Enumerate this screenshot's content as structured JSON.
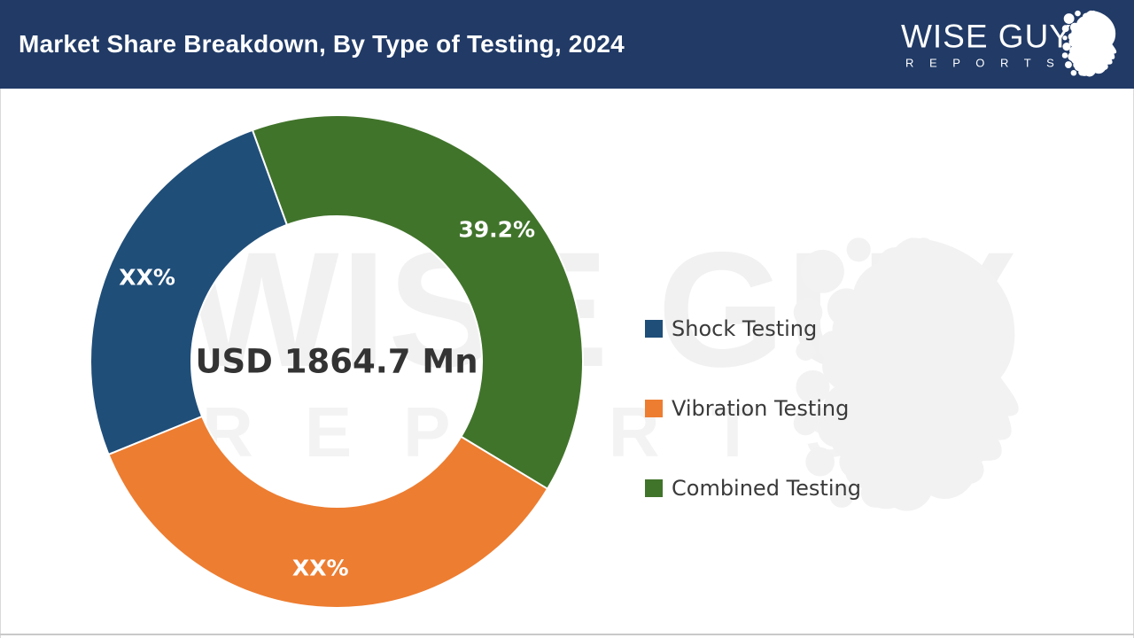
{
  "header": {
    "title": "Market Share Breakdown, By Type of Testing, 2024",
    "logo": {
      "line1": "WISE GUY",
      "line2": "R E P O R T S"
    }
  },
  "watermark": {
    "line1": "WISE GUY",
    "line2": "REPORTS"
  },
  "chart_data": {
    "type": "pie",
    "donut": true,
    "title": "Market Share Breakdown, By Type of Testing, 2024",
    "center_label": "USD 1864.7 Mn",
    "legend_position": "right",
    "start_angle_deg": 110,
    "direction": "clockwise",
    "inner_radius_ratio": 0.59,
    "categories": [
      "Shock Testing",
      "Vibration Testing",
      "Combined Testing"
    ],
    "slices": [
      {
        "label": "Combined Testing",
        "displayed": "39.2%",
        "pct_estimated": 39.2,
        "color": "#41742b"
      },
      {
        "label": "Vibration Testing",
        "displayed": "XX%",
        "pct_estimated": 35.2,
        "color": "#ed7d31"
      },
      {
        "label": "Shock Testing",
        "displayed": "XX%",
        "pct_estimated": 25.6,
        "color": "#1f4e79"
      }
    ]
  },
  "legend": {
    "items": [
      {
        "label": "Shock Testing",
        "color": "#1f4e79"
      },
      {
        "label": "Vibration Testing",
        "color": "#ed7d31"
      },
      {
        "label": "Combined Testing",
        "color": "#41742b"
      }
    ]
  },
  "colors": {
    "header_bg": "#213a66",
    "watermark": "#f1f1f1",
    "center_text": "#333333"
  }
}
